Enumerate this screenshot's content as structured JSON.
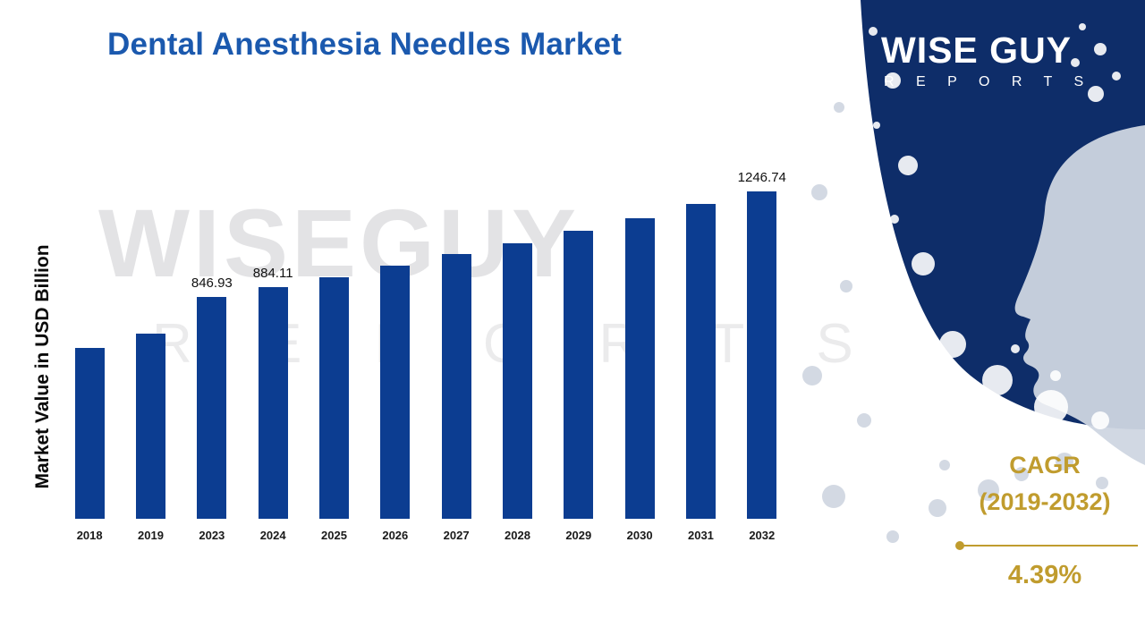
{
  "brand": {
    "name": "WISE GUY",
    "sub": "R E P O R T S"
  },
  "watermark": {
    "line1": "WISEGUY",
    "line2": "R E P O R T S"
  },
  "cagr": {
    "label": "CAGR",
    "range": "(2019-2032)",
    "value": "4.39%"
  },
  "colors": {
    "bar": "#0c3d91",
    "panel": "#0e2d69",
    "title": "#1b59ae",
    "gold": "#c09c2e"
  },
  "chart_data": {
    "type": "bar",
    "title": "Dental Anesthesia Needles Market",
    "xlabel": "",
    "ylabel": "Market Value in USD Billion",
    "categories": [
      "2018",
      "2019",
      "2023",
      "2024",
      "2025",
      "2026",
      "2027",
      "2028",
      "2029",
      "2030",
      "2031",
      "2032"
    ],
    "values": [
      650,
      705,
      846.93,
      884.11,
      920,
      965,
      1008,
      1050,
      1097,
      1147,
      1199,
      1246.74
    ],
    "labeled_values": {
      "2023": "846.93",
      "2024": "884.11",
      "2032": "1246.74"
    },
    "ylim": [
      0,
      1330
    ],
    "grid": false,
    "legend": false,
    "bar_color": "#0c3d91"
  }
}
